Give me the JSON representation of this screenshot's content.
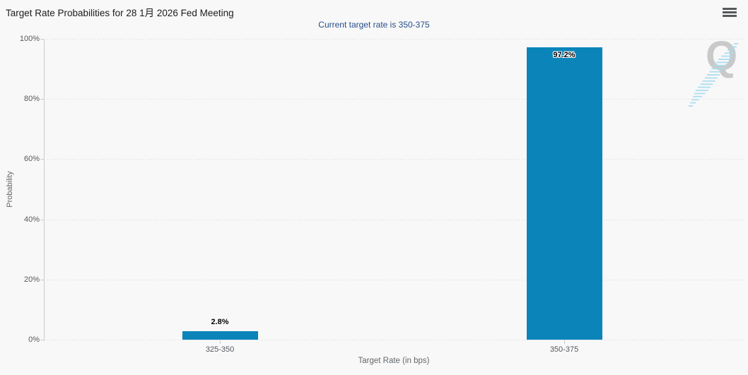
{
  "chart_data": {
    "type": "bar",
    "title": "Target Rate Probabilities for 28 1月 2026 Fed Meeting",
    "subtitle": "Current target rate is 350-375",
    "categories": [
      "325-350",
      "350-375"
    ],
    "values": [
      2.8,
      97.2
    ],
    "value_labels": [
      "2.8%",
      "97.2%"
    ],
    "xlabel": "Target Rate (in bps)",
    "ylabel": "Probability",
    "ylim": [
      0,
      100
    ],
    "yticks": [
      "0%",
      "20%",
      "40%",
      "60%",
      "80%",
      "100%"
    ],
    "grid": "horizontal-dotted",
    "legend": "none",
    "bar_color": "#0b84ba"
  },
  "header": {
    "menu_icon": "hamburger-icon"
  },
  "watermark": {
    "text": "Q",
    "letter_color": "#c9c9c9",
    "stripe_color": "#a9dcef"
  },
  "colors": {
    "background": "#f8f8f8",
    "subtitle_text": "#274e8d",
    "tick_text": "#55585e",
    "axis_line": "#cbcbcb",
    "bar": "#0b84ba"
  }
}
